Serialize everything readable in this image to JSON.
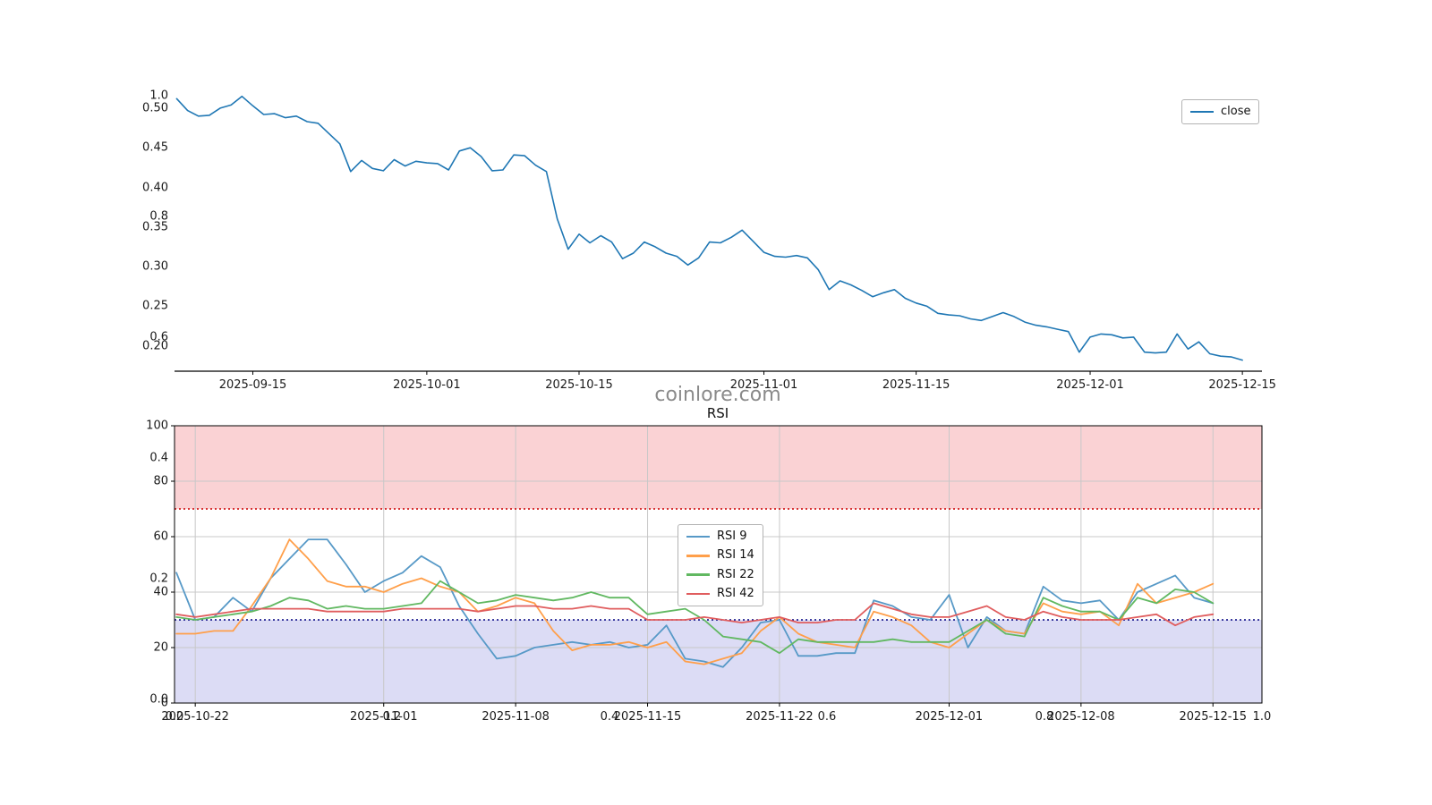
{
  "watermark": "coinlore.com",
  "chart_data": [
    {
      "type": "line",
      "title": "",
      "series_label": "close",
      "line_color": "#1f77b4",
      "x_start_date": "2025-09-08",
      "x_unit": "day",
      "xlim_index": [
        -0.2,
        99.8
      ],
      "ylim": [
        0.168,
        0.518
      ],
      "yticks": [
        "0.50",
        "0.45",
        "0.40",
        "0.35",
        "0.30",
        "0.25",
        "0.20"
      ],
      "xticks": [
        {
          "index": 7,
          "label": "2025-09-15"
        },
        {
          "index": 23,
          "label": "2025-10-01"
        },
        {
          "index": 37,
          "label": "2025-10-15"
        },
        {
          "index": 54,
          "label": "2025-11-01"
        },
        {
          "index": 68,
          "label": "2025-11-15"
        },
        {
          "index": 84,
          "label": "2025-12-01"
        },
        {
          "index": 98,
          "label": "2025-12-15"
        }
      ],
      "legend_position": "upper right",
      "grid": false,
      "values": [
        0.512,
        0.497,
        0.49,
        0.491,
        0.5,
        0.504,
        0.515,
        0.503,
        0.492,
        0.493,
        0.488,
        0.49,
        0.483,
        0.481,
        0.468,
        0.455,
        0.42,
        0.434,
        0.424,
        0.421,
        0.435,
        0.427,
        0.433,
        0.431,
        0.43,
        0.422,
        0.446,
        0.45,
        0.439,
        0.421,
        0.422,
        0.441,
        0.44,
        0.428,
        0.42,
        0.36,
        0.322,
        0.341,
        0.33,
        0.339,
        0.331,
        0.31,
        0.317,
        0.331,
        0.325,
        0.317,
        0.313,
        0.302,
        0.311,
        0.331,
        0.33,
        0.337,
        0.346,
        0.332,
        0.318,
        0.313,
        0.312,
        0.314,
        0.311,
        0.296,
        0.271,
        0.282,
        0.277,
        0.27,
        0.262,
        0.267,
        0.271,
        0.26,
        0.254,
        0.25,
        0.241,
        0.239,
        0.238,
        0.234,
        0.232,
        0.237,
        0.242,
        0.237,
        0.23,
        0.226,
        0.224,
        0.221,
        0.218,
        0.192,
        0.211,
        0.215,
        0.214,
        0.21,
        0.211,
        0.192,
        0.191,
        0.192,
        0.215,
        0.196,
        0.205,
        0.19,
        0.187,
        0.186,
        0.182
      ]
    },
    {
      "type": "line",
      "title": "RSI",
      "x_start_date": "2025-10-21",
      "x_unit": "day",
      "xlim_index": [
        -0.1,
        57.6
      ],
      "ylim": [
        0,
        100
      ],
      "yticks": [
        "0",
        "20",
        "40",
        "60",
        "80",
        "100"
      ],
      "xticks": [
        {
          "index": 1,
          "label": "2025-10-22"
        },
        {
          "index": 11,
          "label": "2025-11-01"
        },
        {
          "index": 18,
          "label": "2025-11-08"
        },
        {
          "index": 25,
          "label": "2025-11-15"
        },
        {
          "index": 32,
          "label": "2025-11-22"
        },
        {
          "index": 41,
          "label": "2025-12-01"
        },
        {
          "index": 48,
          "label": "2025-12-08"
        },
        {
          "index": 55,
          "label": "2025-12-15"
        }
      ],
      "overbought_level": 70,
      "oversold_level": 30,
      "overbought_line_color": "#cc0000",
      "oversold_line_color": "#000080",
      "overbought_band_color": "#fad2d4",
      "oversold_band_color": "#dcdcf5",
      "grid": true,
      "legend_position": "center",
      "series": [
        {
          "name": "RSI 9",
          "color": "#5799c7",
          "values": [
            47,
            30,
            31,
            38,
            33,
            45,
            52,
            59,
            59,
            50,
            40,
            44,
            47,
            53,
            49,
            35,
            25,
            16,
            17,
            20,
            21,
            22,
            21,
            22,
            20,
            21,
            28,
            16,
            15,
            13,
            20,
            29,
            30,
            17,
            17,
            18,
            18,
            37,
            35,
            31,
            30,
            39,
            20,
            31,
            26,
            25,
            42,
            37,
            36,
            37,
            30,
            40,
            43,
            46,
            38,
            36
          ]
        },
        {
          "name": "RSI 14",
          "color": "#ff9f4a",
          "values": [
            25,
            25,
            26,
            26,
            35,
            45,
            59,
            52,
            44,
            42,
            42,
            40,
            43,
            45,
            42,
            40,
            33,
            35,
            38,
            36,
            26,
            19,
            21,
            21,
            22,
            20,
            22,
            15,
            14,
            16,
            18,
            26,
            31,
            25,
            22,
            21,
            20,
            33,
            31,
            28,
            22,
            20,
            25,
            30,
            26,
            25,
            36,
            33,
            32,
            33,
            28,
            43,
            36,
            38,
            40,
            43
          ]
        },
        {
          "name": "RSI 22",
          "color": "#61b861",
          "values": [
            31,
            30,
            31,
            32,
            33,
            35,
            38,
            37,
            34,
            35,
            34,
            34,
            35,
            36,
            44,
            40,
            36,
            37,
            39,
            38,
            37,
            38,
            40,
            38,
            38,
            32,
            33,
            34,
            30,
            24,
            23,
            22,
            18,
            23,
            22,
            22,
            22,
            22,
            23,
            22,
            22,
            22,
            26,
            30,
            25,
            24,
            38,
            35,
            33,
            33,
            30,
            38,
            36,
            41,
            40,
            36
          ]
        },
        {
          "name": "RSI 42",
          "color": "#e05d5e",
          "values": [
            32,
            31,
            32,
            33,
            34,
            34,
            34,
            34,
            33,
            33,
            33,
            33,
            34,
            34,
            34,
            34,
            33,
            34,
            35,
            35,
            34,
            34,
            35,
            34,
            34,
            30,
            30,
            30,
            31,
            30,
            29,
            30,
            31,
            29,
            29,
            30,
            30,
            36,
            34,
            32,
            31,
            31,
            33,
            35,
            31,
            30,
            33,
            31,
            30,
            30,
            30,
            31,
            32,
            28,
            31,
            32
          ]
        }
      ]
    }
  ],
  "phantom_axis": {
    "yticks": [
      "0.0",
      "0.2",
      "0.4",
      "0.6",
      "0.8",
      "1.0"
    ],
    "xticks": [
      "0.0",
      "0.2",
      "0.4",
      "0.6",
      "0.8",
      "1.0"
    ]
  },
  "style": {
    "spine_color": "#000000",
    "grid_color": "#c8c8c8",
    "tick_color": "#1a1a1a",
    "watermark_color": "#8a8a8a"
  }
}
